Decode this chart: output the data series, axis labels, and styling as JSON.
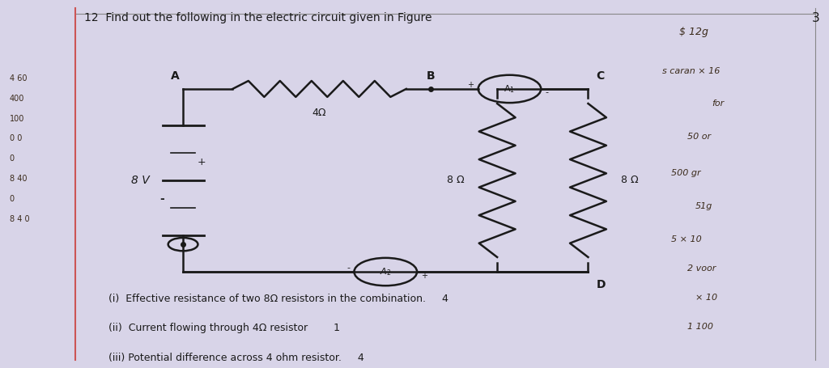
{
  "bg_color": "#d8d4e8",
  "paper_color": "#e8e4f0",
  "title_text": "12  Find out the following in the electric circuit given in Figure",
  "question_number_right": "3",
  "battery_voltage": "8 V",
  "resistor_top_label": "4Ω",
  "resistor_left_label": "8 Ω",
  "resistor_right_label": "8 Ω",
  "questions": [
    "(i)  Effective resistance of two 8Ω resistors in the combination.     4",
    "(ii)  Current flowing through 4Ω resistor        1",
    "(iii) Potential difference across 4 ohm resistor.     4"
  ],
  "line_color": "#1a1a1a",
  "text_color": "#1a1a1a"
}
